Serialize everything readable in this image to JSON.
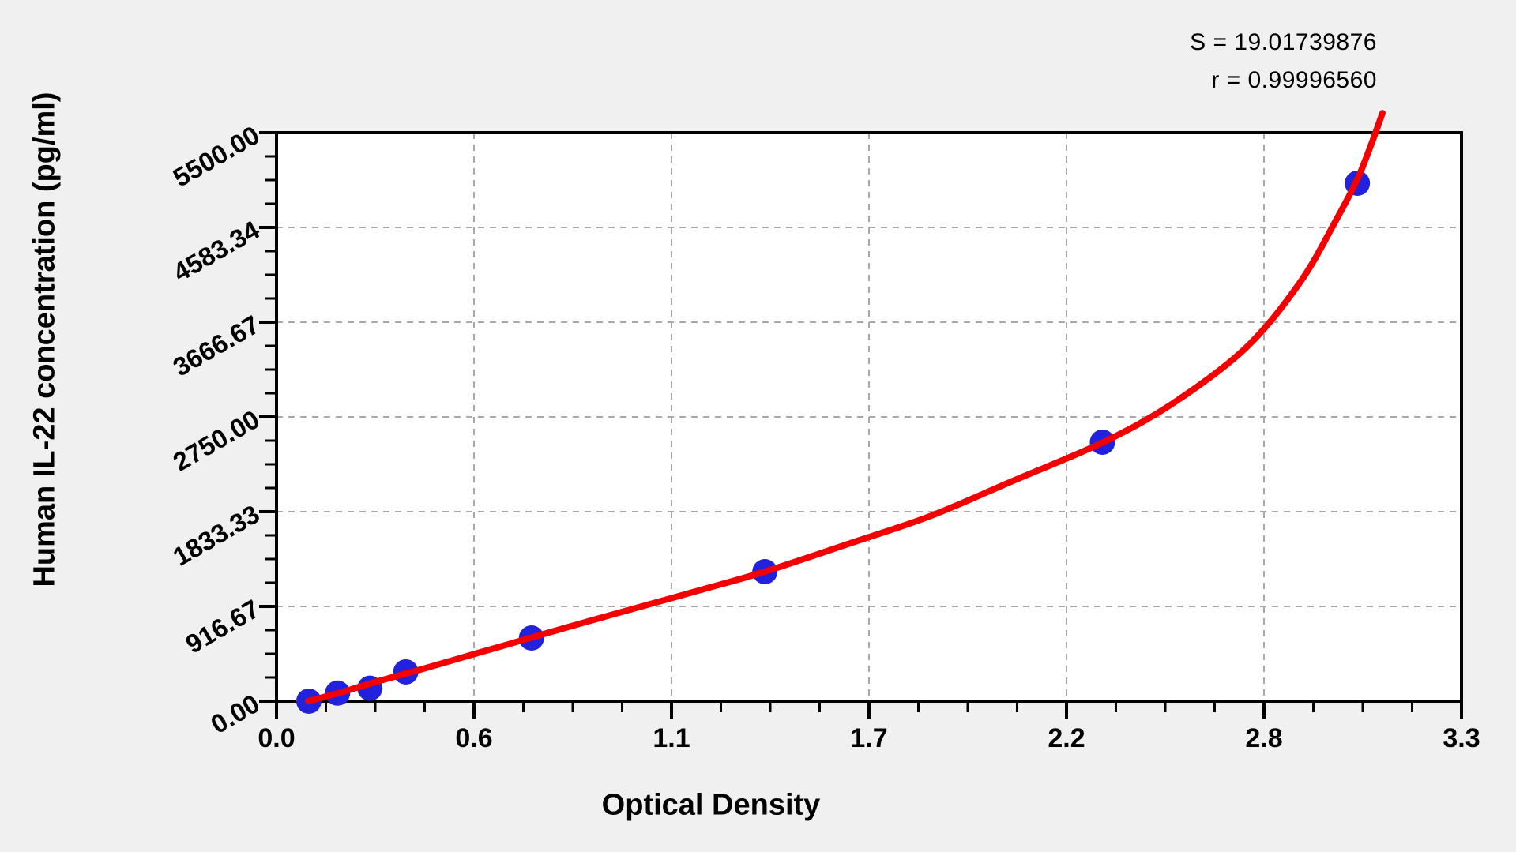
{
  "chart_data": {
    "type": "scatter",
    "title": "",
    "xlabel": "Optical Density",
    "ylabel": "Human IL-22 concentration (pg/ml)",
    "stats": {
      "s": "S = 19.01739876",
      "r": "r = 0.99996560"
    },
    "xlim": [
      0,
      3.3
    ],
    "ylim": [
      0,
      5500
    ],
    "x_tick_values": [
      0,
      0.55,
      1.1,
      1.65,
      2.2,
      2.75,
      3.3
    ],
    "x_tick_labels": [
      "0.0",
      "0.6",
      "1.1",
      "1.7",
      "2.2",
      "2.8",
      "3.3"
    ],
    "x_minor_per_major": 4,
    "y_tick_values": [
      0,
      916.67,
      1833.33,
      2750,
      3666.67,
      4583.34,
      5500
    ],
    "y_tick_labels": [
      "0.00",
      "916.67",
      "1833.33",
      "2750.00",
      "3666.67",
      "4583.34",
      "5500.00"
    ],
    "y_minor_per_major": 4,
    "grid": "dashed-major",
    "legend_position": "none",
    "points": [
      {
        "od": 0.09,
        "conc": 0
      },
      {
        "od": 0.17,
        "conc": 78
      },
      {
        "od": 0.26,
        "conc": 125
      },
      {
        "od": 0.36,
        "conc": 283
      },
      {
        "od": 0.71,
        "conc": 611
      },
      {
        "od": 1.36,
        "conc": 1253
      },
      {
        "od": 2.3,
        "conc": 2506
      },
      {
        "od": 3.01,
        "conc": 5011
      }
    ],
    "curve": [
      [
        0.088,
        0
      ],
      [
        0.18,
        85
      ],
      [
        0.28,
        190
      ],
      [
        0.4,
        305
      ],
      [
        0.55,
        455
      ],
      [
        0.706,
        611
      ],
      [
        0.85,
        755
      ],
      [
        1.0,
        900
      ],
      [
        1.18,
        1075
      ],
      [
        1.36,
        1253
      ],
      [
        1.6,
        1530
      ],
      [
        1.82,
        1790
      ],
      [
        2.05,
        2130
      ],
      [
        2.303,
        2506
      ],
      [
        2.5,
        2890
      ],
      [
        2.7,
        3420
      ],
      [
        2.85,
        4050
      ],
      [
        2.95,
        4650
      ],
      [
        3.01,
        5050
      ],
      [
        3.05,
        5400
      ],
      [
        3.08,
        5690
      ]
    ],
    "colors": {
      "curve": "#f40000",
      "points": "#2222dd",
      "grid": "#a8a8a8",
      "frame": "#000000",
      "plot_bg": "#ffffff",
      "page_bg": "#f0f0f0"
    }
  }
}
